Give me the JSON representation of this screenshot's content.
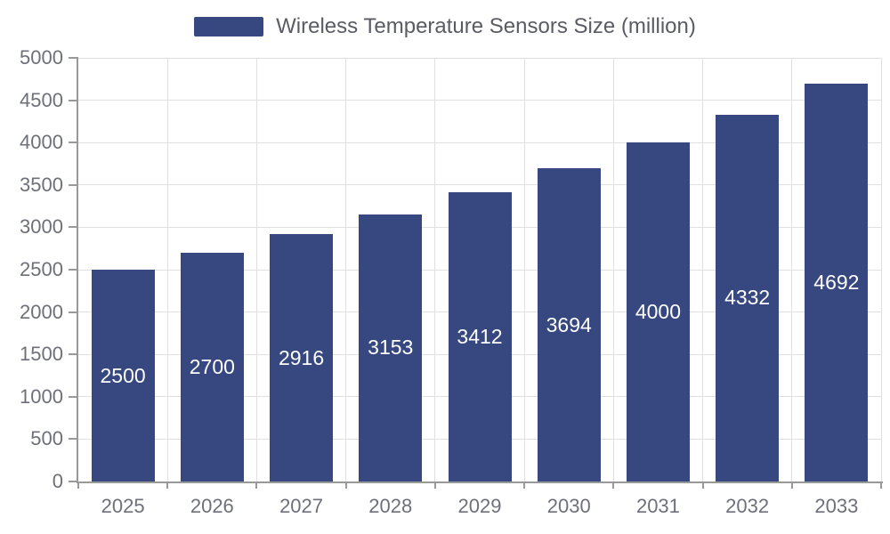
{
  "chart_data": {
    "type": "bar",
    "title": "Wireless Temperature Sensors Size (million)",
    "categories": [
      "2025",
      "2026",
      "2027",
      "2028",
      "2029",
      "2030",
      "2031",
      "2032",
      "2033"
    ],
    "values": [
      2500,
      2700,
      2916,
      3153,
      3412,
      3694,
      4000,
      4332,
      4692
    ],
    "xlabel": "",
    "ylabel": "",
    "ylim": [
      0,
      5000
    ],
    "ytick_step": 500,
    "yticks": [
      0,
      500,
      1000,
      1500,
      2000,
      2500,
      3000,
      3500,
      4000,
      4500,
      5000
    ],
    "grid": true,
    "legend_position": "top-center",
    "value_labels": "centered-inside-bars-white",
    "colors": {
      "bar": "#374880",
      "grid_line": "#e0e0e0",
      "axis_line": "#999999",
      "tick_label": "#6e7079",
      "legend_text": "#5a5c63",
      "value_label": "#ffffff",
      "background": "#ffffff"
    }
  }
}
